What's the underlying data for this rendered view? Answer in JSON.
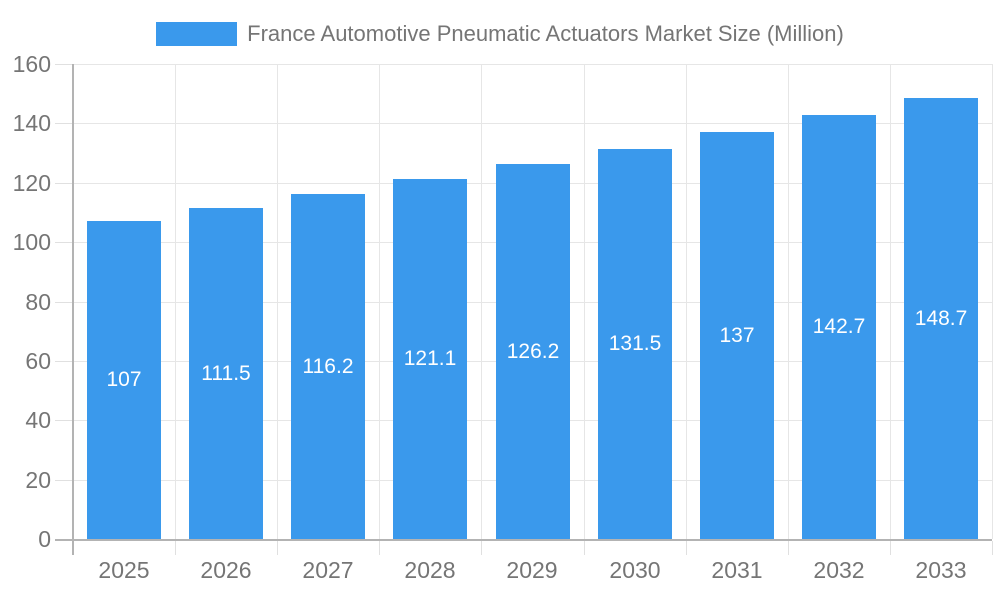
{
  "legend": {
    "label": "France Automotive Pneumatic Actuators Market Size (Million)"
  },
  "chart_data": {
    "type": "bar",
    "title": "France Automotive Pneumatic Actuators Market Size (Million)",
    "categories": [
      "2025",
      "2026",
      "2027",
      "2028",
      "2029",
      "2030",
      "2031",
      "2032",
      "2033"
    ],
    "values": [
      107,
      111.5,
      116.2,
      121.1,
      126.2,
      131.5,
      137,
      142.7,
      148.7
    ],
    "xlabel": "",
    "ylabel": "",
    "ylim": [
      0,
      160
    ],
    "yticks": [
      0,
      20,
      40,
      60,
      80,
      100,
      120,
      140,
      160
    ],
    "grid": true,
    "legend_position": "top",
    "colors": {
      "bar": "#3A99EC",
      "value_label": "#ffffff",
      "axis_label": "#757575",
      "title": "#757575",
      "gridline": "#e6e6e6",
      "axis_line": "#b3b3b3"
    }
  }
}
